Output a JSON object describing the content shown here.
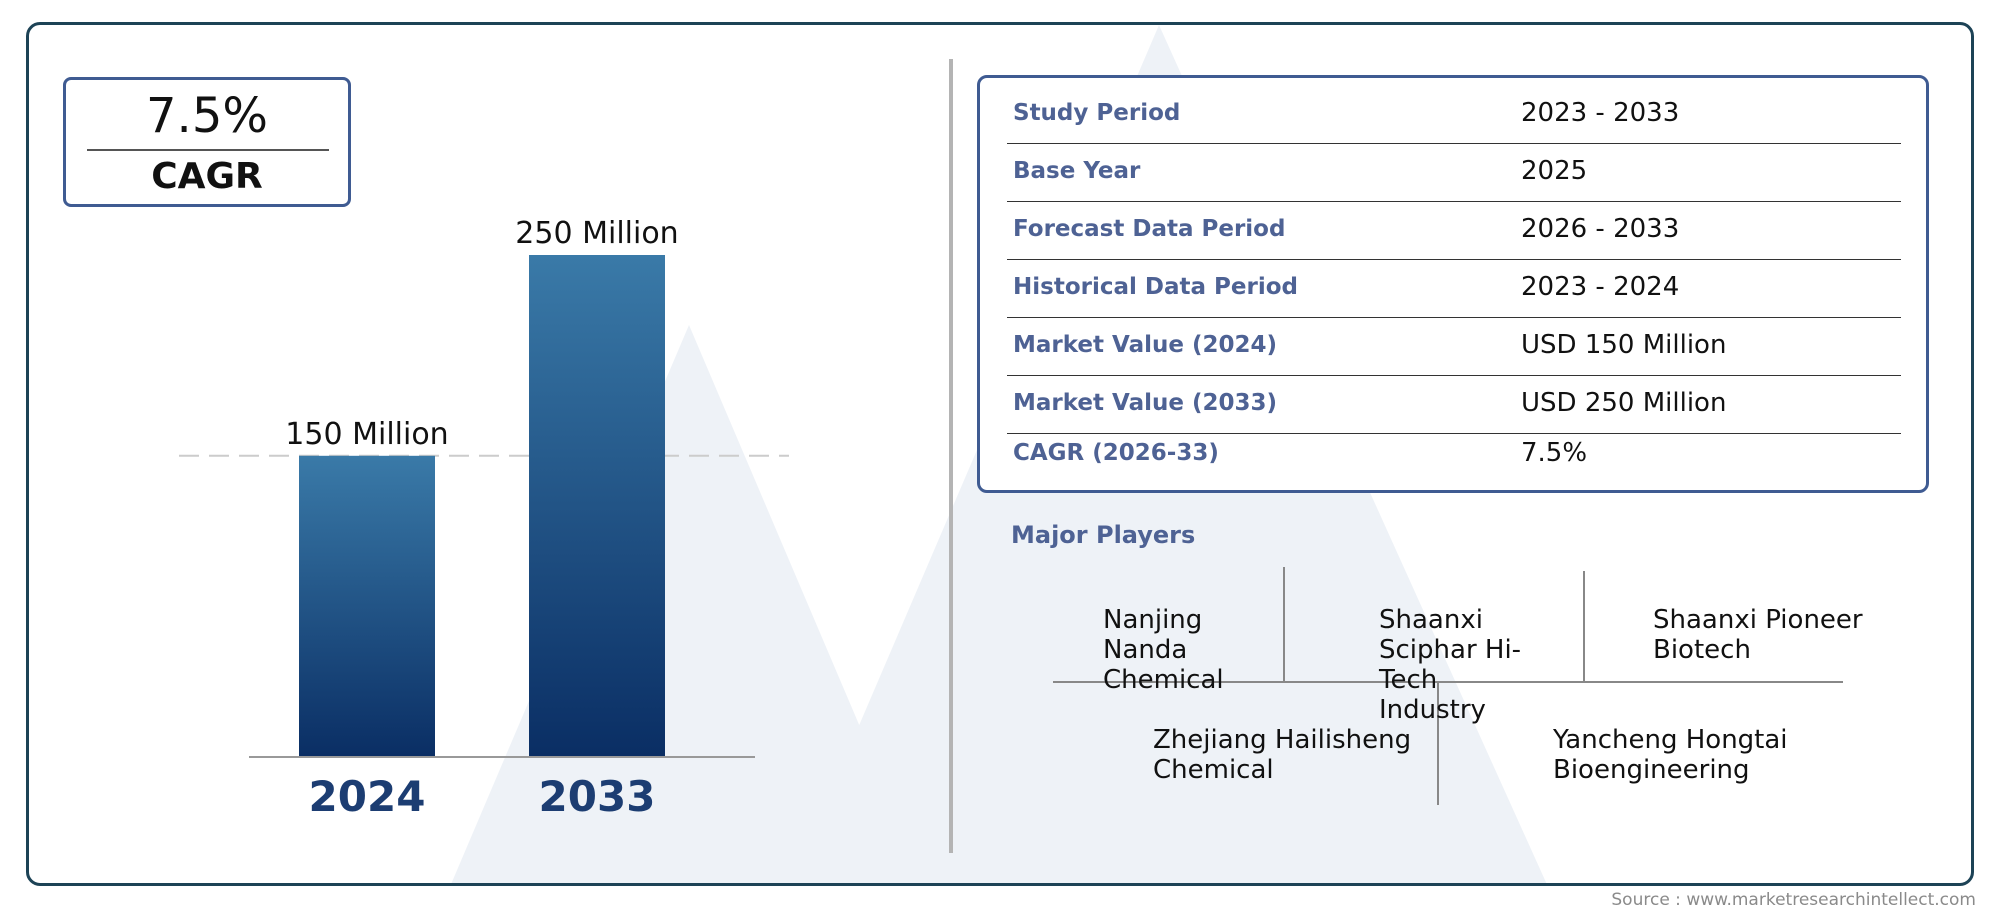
{
  "cagr_box": {
    "value": "7.5%",
    "label": "CAGR"
  },
  "chart_data": {
    "type": "bar",
    "categories": [
      "2024",
      "2033"
    ],
    "values": [
      150,
      250
    ],
    "value_labels": [
      "150 Million",
      "250 Million"
    ],
    "unit": "Million",
    "title": "",
    "xlabel": "",
    "ylabel": "",
    "ylim": [
      0,
      250
    ],
    "grid": false,
    "colors": {
      "bar_top": "#3a7aa8",
      "bar_bottom": "#0a2e64",
      "tick_label": "#1c3d72",
      "guide_line": "#cccccc"
    }
  },
  "table": {
    "rows": [
      {
        "key": "Study Period",
        "value": "2023 - 2033"
      },
      {
        "key": "Base Year",
        "value": "2025"
      },
      {
        "key": "Forecast Data Period",
        "value": "2026 - 2033"
      },
      {
        "key": "Historical Data Period",
        "value": "2023 - 2024"
      },
      {
        "key": "Market Value (2024)",
        "value": "USD 150 Million"
      },
      {
        "key": "Market Value (2033)",
        "value": "USD 250 Million"
      },
      {
        "key": "CAGR (2026-33)",
        "value": "7.5%"
      }
    ]
  },
  "players": {
    "title": "Major Players",
    "items": [
      "Nanjing Nanda Chemical",
      "Shaanxi Sciphar Hi-Tech Industry",
      "Shaanxi Pioneer Biotech",
      "Zhejiang Hailisheng Chemical",
      "Yancheng Hongtai Bioengineering"
    ]
  },
  "source": "Source : www.marketresearchintellect.com",
  "colors": {
    "frame": "#1d4356",
    "accent_border": "#3f5b92",
    "key_text": "#4e6294"
  }
}
